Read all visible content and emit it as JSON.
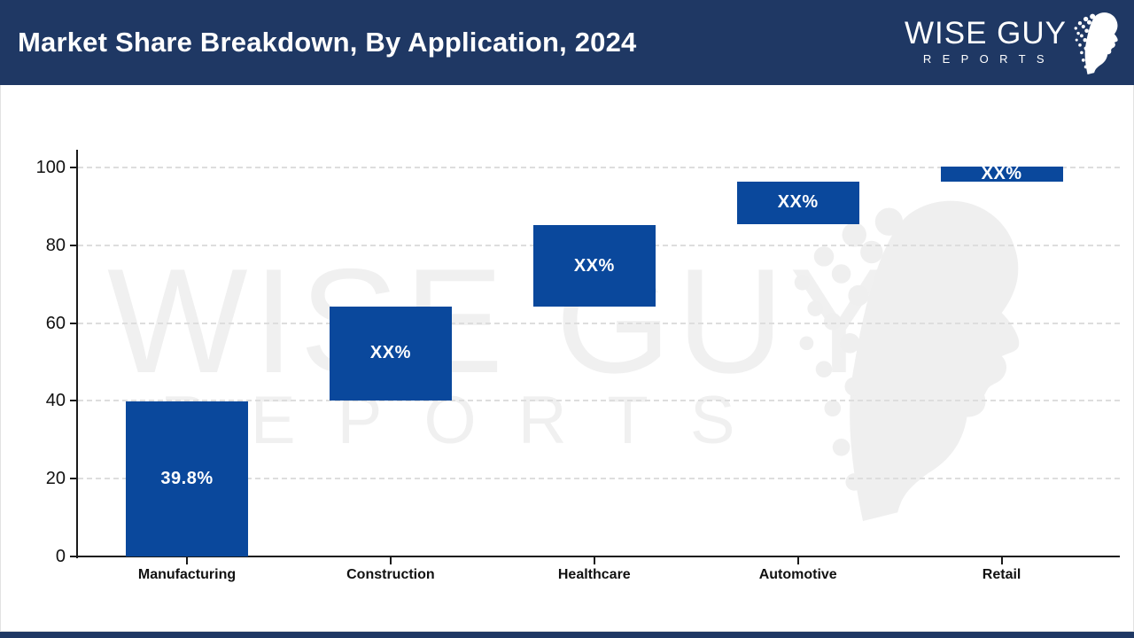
{
  "header": {
    "title": "Market Share Breakdown, By Application, 2024",
    "logo": {
      "line1": "WISE GUY",
      "line2": "REPORTS"
    }
  },
  "watermark": {
    "line1": "WISE GUY",
    "line2": "REPORTS"
  },
  "colors": {
    "header_bg": "#1f3864",
    "bar": "#0a489c",
    "gridline": "#dddddd",
    "axis": "#1a1a1a",
    "watermark": "#efefef"
  },
  "chart_data": {
    "type": "bar",
    "subtype": "waterfall",
    "title": "Market Share Breakdown, By Application, 2024",
    "categories": [
      "Manufacturing",
      "Construction",
      "Healthcare",
      "Automotive",
      "Retail"
    ],
    "segments": [
      {
        "category": "Manufacturing",
        "start": 0,
        "end": 39.8,
        "label": "39.8%"
      },
      {
        "category": "Construction",
        "start": 40.2,
        "end": 64.2,
        "label": "XX%"
      },
      {
        "category": "Healthcare",
        "start": 64.2,
        "end": 85.1,
        "label": "XX%"
      },
      {
        "category": "Automotive",
        "start": 85.5,
        "end": 96.4,
        "label": "XX%"
      },
      {
        "category": "Retail",
        "start": 96.4,
        "end": 100.2,
        "label": "XX%"
      }
    ],
    "yticks": [
      0,
      20,
      40,
      60,
      80,
      100
    ],
    "ylim": [
      0,
      104.5
    ],
    "xlabel": "",
    "ylabel": "",
    "grid": "dashed-horizontal",
    "legend": "none",
    "bar_color": "#0a489c"
  }
}
